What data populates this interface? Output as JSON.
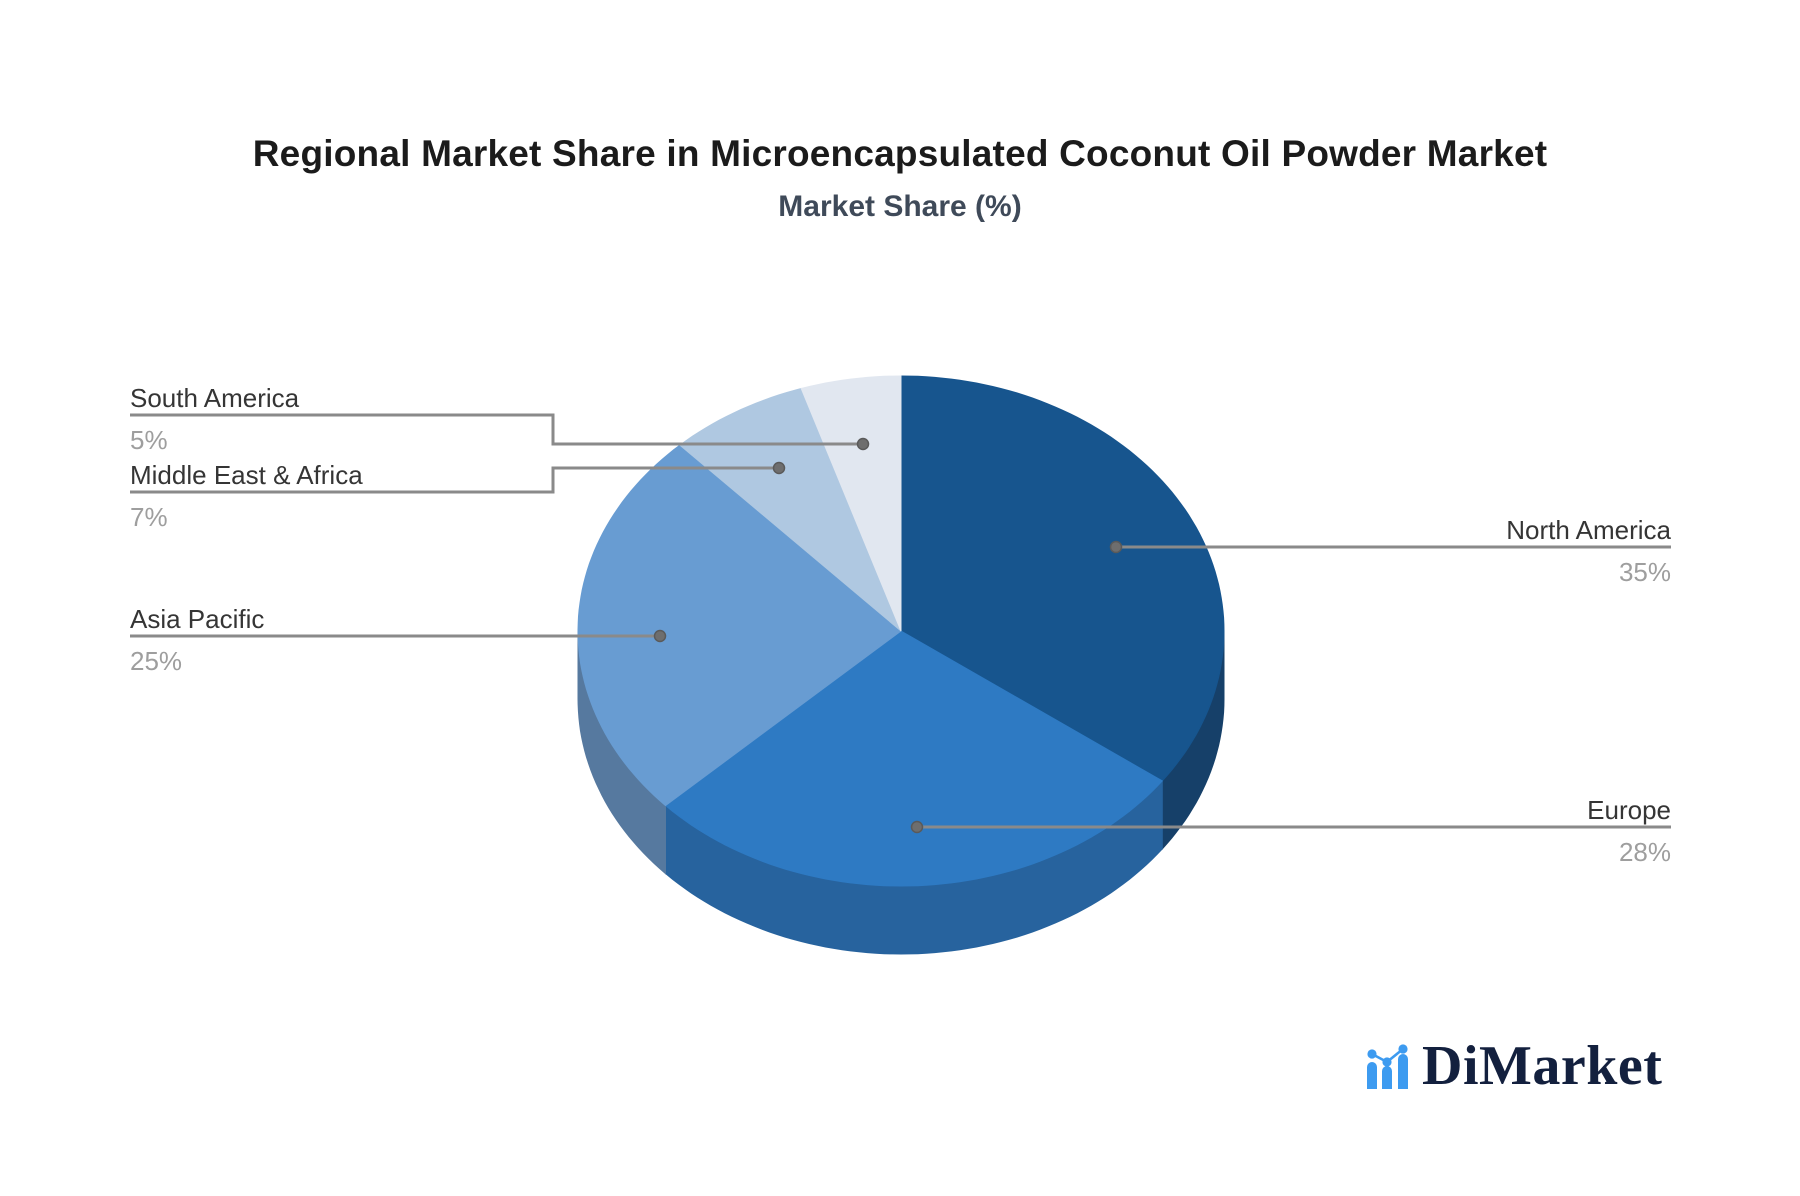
{
  "chart_data": {
    "type": "pie",
    "effect": "3d",
    "title": "Regional Market Share in Microencapsulated Coconut Oil Powder Market",
    "subtitle": "Market Share (%)",
    "unit": "%",
    "start_angle_deg": 0,
    "direction": "clockwise",
    "series": [
      {
        "label": "North America",
        "value": 35,
        "pct": "35%",
        "color": "#17558E",
        "side_color": "#164069"
      },
      {
        "label": "Europe",
        "value": 28,
        "pct": "28%",
        "color": "#2E7AC3",
        "side_color": "#27639E"
      },
      {
        "label": "Asia Pacific",
        "value": 25,
        "pct": "25%",
        "color": "#689CD2",
        "side_color": "#56799F"
      },
      {
        "label": "Middle East & Africa",
        "value": 7,
        "pct": "7%",
        "color": "#AFC8E1",
        "side_color": "#8FA9C4"
      },
      {
        "label": "South America",
        "value": 5,
        "pct": "5%",
        "color": "#E1E7F0",
        "side_color": "#BCC4D4"
      }
    ]
  },
  "colors": {
    "background": "#FFFFFF",
    "title_text": "#1B1B1B",
    "subtitle_text": "#3F4A59",
    "label_text": "#353535",
    "percent_text": "#9E9E9E",
    "leader_line": "#8A8A8A",
    "leader_dot": "#6E6E6E",
    "logo_text": "#13203E",
    "logo_icon": "#3D9BF0"
  },
  "logo": {
    "text": "DiMarket",
    "icon": "bar-line-chart-icon"
  }
}
